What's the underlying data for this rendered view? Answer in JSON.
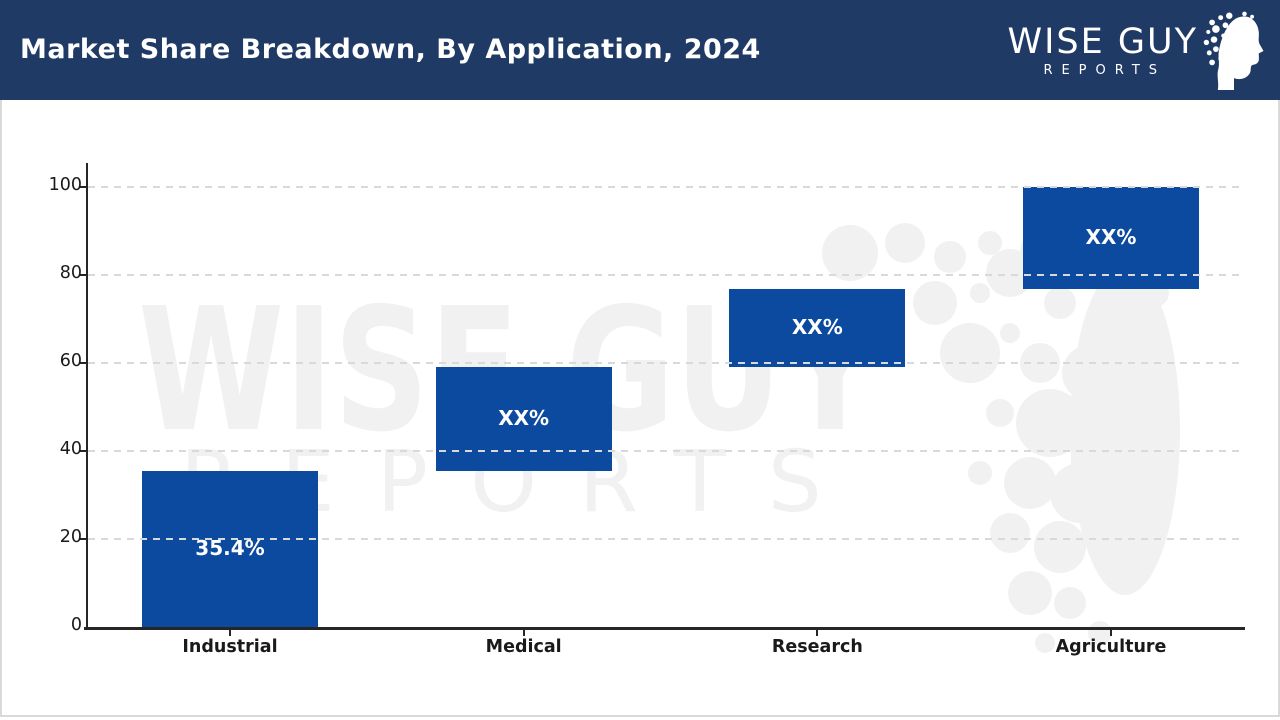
{
  "header": {
    "title": "Market Share Breakdown, By Application, 2024",
    "bg_color": "#203a66",
    "logo": {
      "line1": "WISE GUY",
      "line2": "REPORTS"
    }
  },
  "watermark": {
    "line1": "WISE GUY",
    "line2": "REPORTS"
  },
  "chart_data": {
    "type": "bar",
    "subtype": "waterfall",
    "title": "Market Share Breakdown, By Application, 2024",
    "categories": [
      "Industrial",
      "Medical",
      "Research",
      "Agriculture"
    ],
    "segments": [
      {
        "category": "Industrial",
        "start": 0,
        "end": 35.4,
        "label": "35.4%"
      },
      {
        "category": "Medical",
        "start": 35.4,
        "end": 59.1,
        "label": "XX%"
      },
      {
        "category": "Research",
        "start": 59.1,
        "end": 76.9,
        "label": "XX%"
      },
      {
        "category": "Agriculture",
        "start": 76.9,
        "end": 100,
        "label": "XX%"
      }
    ],
    "xlabel": "",
    "ylabel": "",
    "ylim": [
      0,
      105.5
    ],
    "yticks": [
      0,
      20,
      40,
      60,
      80,
      100
    ],
    "grid": "horizontal-dashed-above-bars",
    "legend": "none",
    "bar_color": "#0b4a9e",
    "grid_color": "#d9d9d9",
    "axis_color": "#262626",
    "value_label_color": "#ffffff"
  }
}
